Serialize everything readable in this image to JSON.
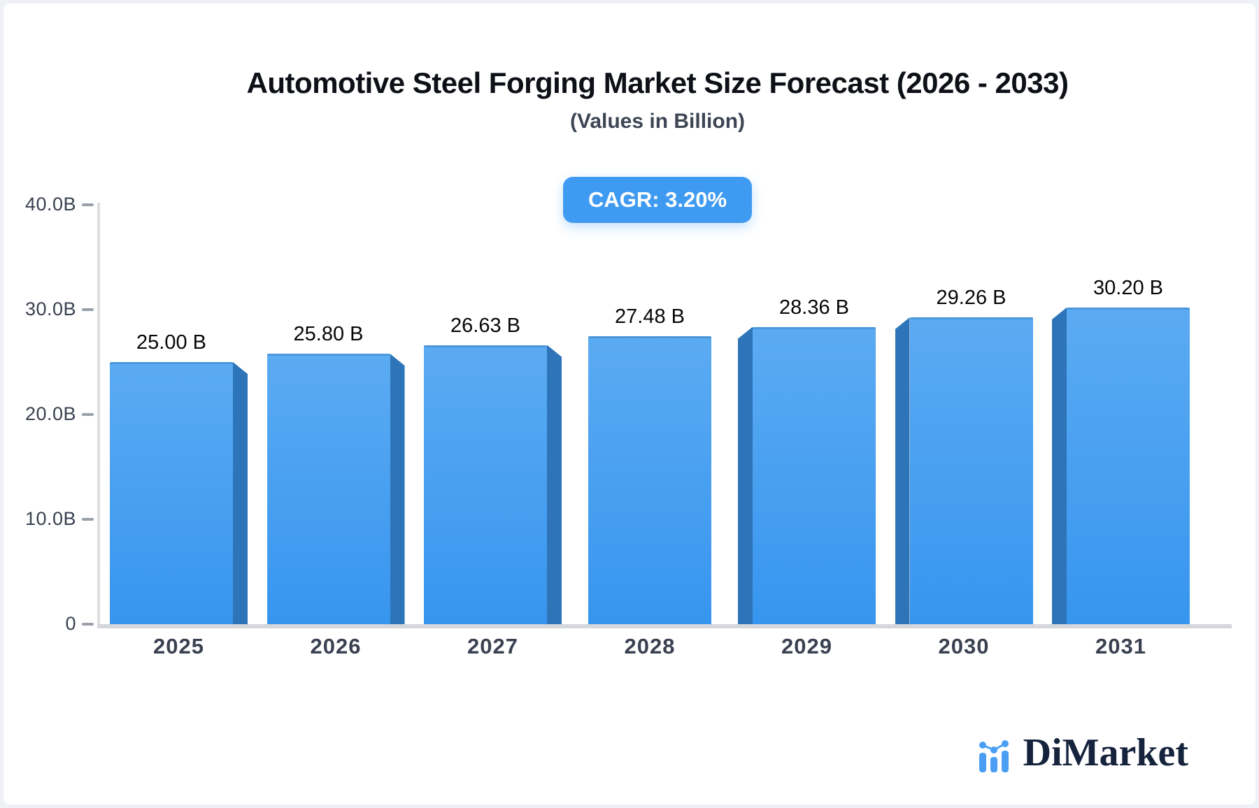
{
  "header": {
    "title": "Automotive Steel Forging Market Size Forecast (2026 - 2033)",
    "subtitle": "(Values in Billion)",
    "cagr_badge": "CAGR: 3.20%"
  },
  "chart_data": {
    "type": "bar",
    "title": "Automotive Steel Forging Market Size Forecast (2026 - 2033)",
    "subtitle": "(Values in Billion)",
    "cagr_percent": "3.20%",
    "categories": [
      "2025",
      "2026",
      "2027",
      "2028",
      "2029",
      "2030",
      "2031"
    ],
    "values": [
      25.0,
      25.8,
      26.63,
      27.48,
      28.36,
      29.26,
      30.2
    ],
    "bar_labels": [
      "25.00 B",
      "25.80 B",
      "26.63 B",
      "27.48 B",
      "28.36 B",
      "29.26 B",
      "30.20 B"
    ],
    "xlabel": "",
    "ylabel": "",
    "ylim": [
      0,
      40
    ],
    "yticks": [
      {
        "value": 40,
        "label": "40.0B"
      },
      {
        "value": 30,
        "label": "30.0B"
      },
      {
        "value": 20,
        "label": "20.0B"
      },
      {
        "value": 10,
        "label": "10.0B"
      },
      {
        "value": 0,
        "label": "0"
      }
    ],
    "grid": false,
    "legend": false,
    "bar_style": "3d-perspective",
    "colors": {
      "bar_face_top": "#5babf2",
      "bar_face_bottom": "#3795ef",
      "bar_top_edge": "#4a97db",
      "bar_side": "#2e74b8",
      "axis_line": "#dadce0",
      "baseline": "#d5d7da",
      "tick": "#9aa1ab",
      "badge_bg": "#3f9bf1",
      "badge_text": "#ffffff"
    }
  },
  "branding": {
    "logo_text": "DiMarket",
    "logo_icon": "bar-chart-sparkline-icon",
    "logo_text_color": "#16233d",
    "logo_icon_color": "#4a9ff5"
  }
}
